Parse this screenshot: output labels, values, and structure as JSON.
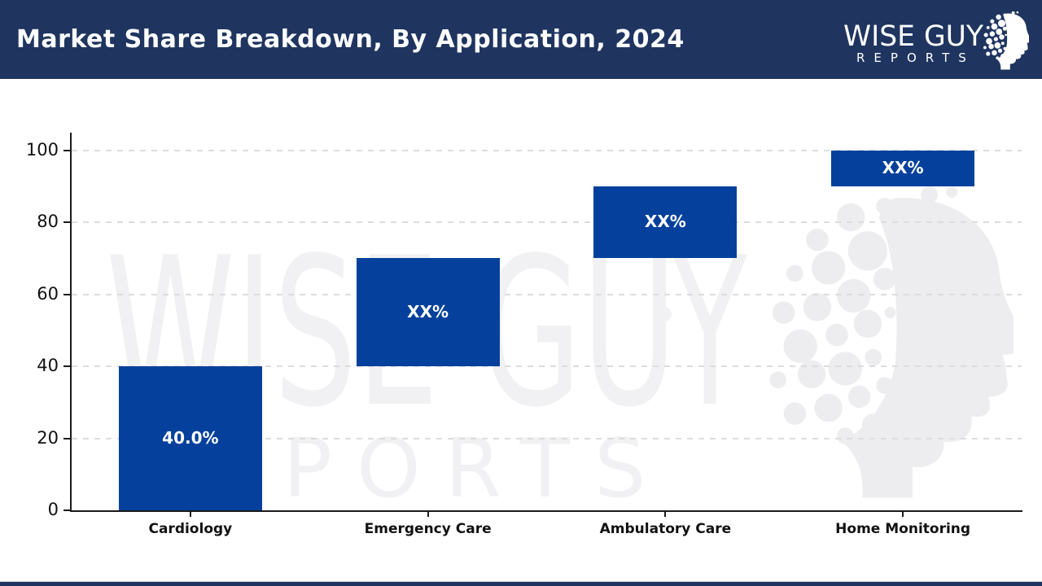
{
  "header": {
    "title": "Market Share Breakdown, By Application, 2024",
    "logo": {
      "wordmark": "WISE GUY",
      "subtext": "REPORTS"
    }
  },
  "watermark": {
    "line1": "WISE GU",
    "line1_tail": "Y",
    "line2": "REPORTS"
  },
  "chart_data": {
    "type": "bar",
    "subtype": "waterfall",
    "title": "Market Share Breakdown, By Application, 2024",
    "categories": [
      "Cardiology",
      "Emergency Care",
      "Ambulatory Care",
      "Home Monitoring"
    ],
    "segments": [
      {
        "category": "Cardiology",
        "start": 0,
        "end": 40,
        "label": "40.0%"
      },
      {
        "category": "Emergency Care",
        "start": 40,
        "end": 70,
        "label": "XX%"
      },
      {
        "category": "Ambulatory Care",
        "start": 70,
        "end": 90,
        "label": "XX%"
      },
      {
        "category": "Home Monitoring",
        "start": 90,
        "end": 100,
        "label": "XX%"
      }
    ],
    "segment_sizes_implied": [
      40,
      30,
      20,
      10
    ],
    "yticks": [
      0,
      20,
      40,
      60,
      80,
      100
    ],
    "ylim": [
      0,
      105
    ],
    "xlabel": "",
    "ylabel": "",
    "grid": "horizontal-dashed",
    "legend": "none",
    "bar_color": "#05419c"
  },
  "colors": {
    "header_bg": "#1f3560",
    "bar": "#05419c",
    "label_on_bar": "#ffffff",
    "axis": "#1a1a1a",
    "gridline": "#dcdcdc",
    "watermark": "#f1f1f3",
    "footer_bar": "#1f3560"
  }
}
